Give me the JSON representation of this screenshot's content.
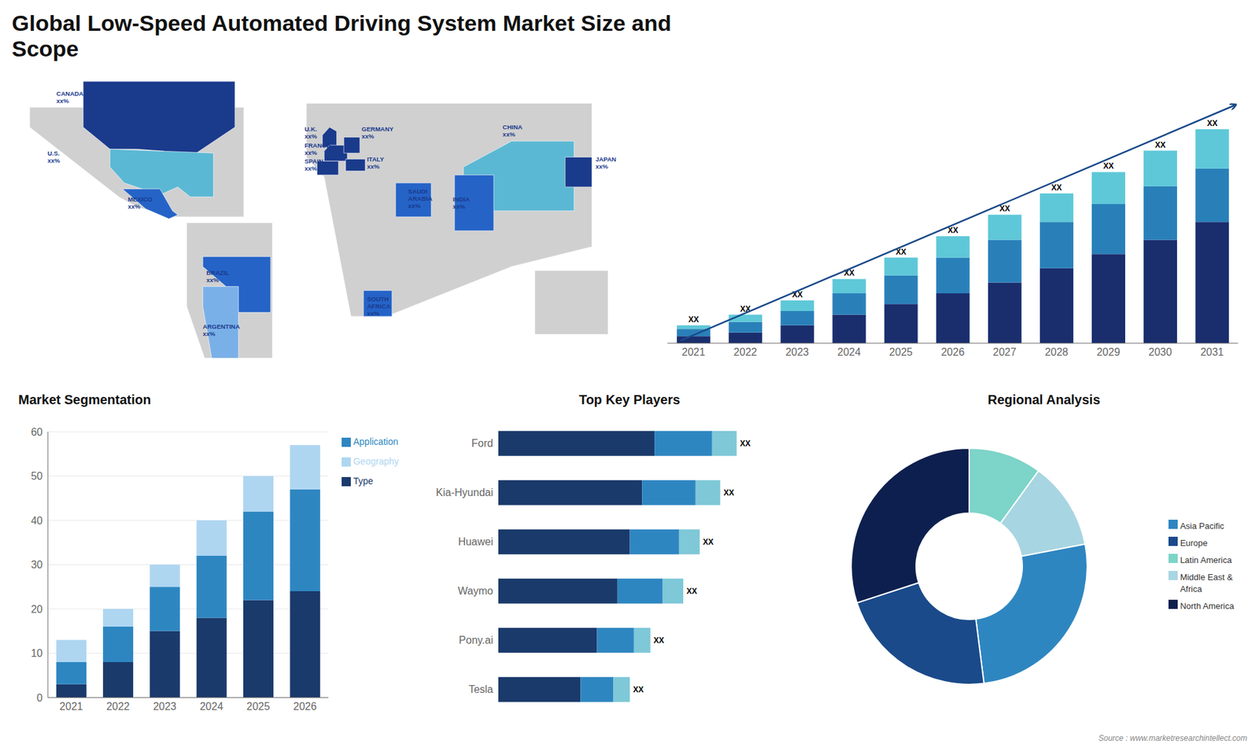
{
  "title": "Global Low-Speed Automated Driving System Market Size and\nScope",
  "annotations": [
    "Source : www.marketresearchintellect.com"
  ],
  "chart_data": [
    {
      "type": "map",
      "color": "#1a3a8c",
      "categories": [
        "CANADA\nxx%",
        "U.S.\nxx%",
        "MEXICO\nxx%",
        "BRAZIL\nxx%",
        "ARGENTINA\nxx%",
        "U.K.\nxx%",
        "FRANCE\nxx%",
        "SPAIN\nxx%",
        "GERMANY\nxx%",
        "ITALY\nxx%",
        "SAUDI\nARABIA\nxx%",
        "SOUTH\nAFRICA\nxx%",
        "CHINA\nxx%",
        "INDIA\nxx%",
        "JAPAN\nxx%"
      ],
      "colors": [
        "#1a3a8c",
        "#5bb8d4",
        "#2563c7",
        "#2563c7",
        "#7ab0e8",
        "#1a3a8c",
        "#1a3a8c",
        "#1a3a8c",
        "#1a3a8c",
        "#1a3a8c",
        "#2563c7",
        "#2563c7",
        "#5bb8d4",
        "#2563c7",
        "#1a3a8c"
      ]
    },
    {
      "type": "bar",
      "stacked": true,
      "categories": [
        "2021",
        "2022",
        "2023",
        "2024",
        "2025",
        "2026",
        "2027",
        "2028",
        "2029",
        "2030",
        "2031"
      ],
      "series": [
        {
          "color": "#1a2e6e",
          "values": [
            2,
            3,
            5,
            8,
            11,
            14,
            17,
            21,
            25,
            29,
            34
          ]
        },
        {
          "color": "#2980b9",
          "values": [
            2,
            3,
            4,
            6,
            8,
            10,
            12,
            13,
            14,
            15,
            15
          ]
        },
        {
          "color": "#5ec8d8",
          "values": [
            1,
            2,
            3,
            4,
            5,
            6,
            7,
            8,
            9,
            10,
            11
          ],
          "value_labels": [
            "XX",
            "XX",
            "XX",
            "XX",
            "XX",
            "XX",
            "XX",
            "XX",
            "XX",
            "XX",
            "XX"
          ]
        }
      ],
      "ylim": [
        0,
        69
      ],
      "tick_labels": "x",
      "grid": false,
      "annotations": [
        {
          "type": "arrow",
          "color": "#1a4a8a"
        }
      ]
    },
    {
      "type": "bar",
      "title": "Market Segmentation",
      "stacked": true,
      "categories": [
        "2021",
        "2022",
        "2023",
        "2024",
        "2025",
        "2026"
      ],
      "series": [
        {
          "name": "Type",
          "color": "#1a3a6b",
          "values": [
            3,
            8,
            15,
            18,
            22,
            24
          ]
        },
        {
          "name": "Application",
          "color": "#2e86c1",
          "values": [
            5,
            8,
            10,
            14,
            20,
            23
          ]
        },
        {
          "name": "Geography",
          "color": "#aed6f1",
          "values": [
            5,
            4,
            5,
            8,
            8,
            10
          ]
        }
      ],
      "ylim": [
        0,
        60
      ],
      "yticks": [
        0,
        10,
        20,
        30,
        40,
        50,
        60
      ],
      "grid": true,
      "legend": "right"
    },
    {
      "type": "bar",
      "title": "Top Key Players",
      "orientation": "horizontal",
      "stacked": true,
      "categories": [
        "Ford",
        "Kia-Hyundai",
        "Huawei",
        "Waymo",
        "Pony.ai",
        "Tesla"
      ],
      "series": [
        {
          "color": "#1a3a6b",
          "values": [
            0.38,
            0.35,
            0.32,
            0.29,
            0.24,
            0.2
          ]
        },
        {
          "color": "#2e86c1",
          "values": [
            0.14,
            0.13,
            0.12,
            0.11,
            0.09,
            0.08
          ]
        },
        {
          "color": "#7ec8d8",
          "values": [
            0.06,
            0.06,
            0.05,
            0.05,
            0.04,
            0.04
          ],
          "value_labels": [
            "XX",
            "XX",
            "XX",
            "XX",
            "XX",
            "XX"
          ]
        }
      ],
      "xlim": [
        0,
        0.75
      ],
      "tick_labels": "y",
      "grid": false
    },
    {
      "type": "donut",
      "title": "Regional Analysis",
      "categories": [
        "Latin America",
        "Middle East &\nAfrica",
        "Asia Pacific",
        "Europe",
        "North America"
      ],
      "values": [
        0.1,
        0.12,
        0.26,
        0.22,
        0.3
      ],
      "colors": [
        "#7dd4c8",
        "#a8d5e2",
        "#2e86c1",
        "#1a4a8a",
        "#0d1f4e"
      ],
      "legend": "right"
    }
  ]
}
